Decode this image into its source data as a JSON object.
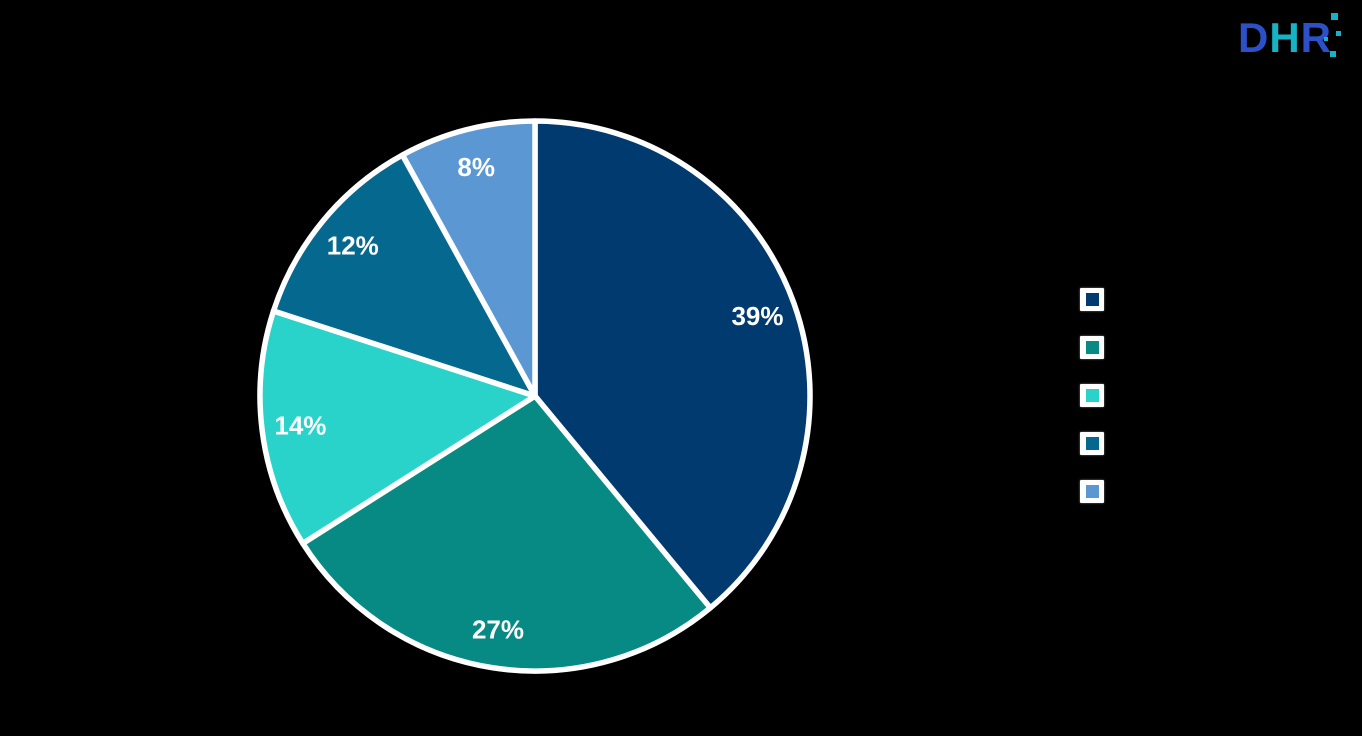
{
  "logo": {
    "letters": [
      {
        "char": "D",
        "color": "#2b50c8"
      },
      {
        "char": "H",
        "color": "#16b2c5"
      },
      {
        "char": "R",
        "color": "#2b50c8"
      }
    ],
    "accent_dot_color": "#16b2c5"
  },
  "chart_data": {
    "type": "pie",
    "title": "",
    "labels": [
      "39%",
      "27%",
      "14%",
      "12%",
      "8%"
    ],
    "values": [
      39,
      27,
      14,
      12,
      8
    ],
    "colors": [
      "#003a6e",
      "#068a83",
      "#29d3ca",
      "#05688f",
      "#5b98d3"
    ],
    "slice_label_color": "#ffffff",
    "separator_color": "#ffffff",
    "start_angle_deg": 0,
    "direction": "clockwise",
    "legend_position": "right",
    "legend_swatch_frame_color": "#ffffff",
    "background": "#000000"
  }
}
